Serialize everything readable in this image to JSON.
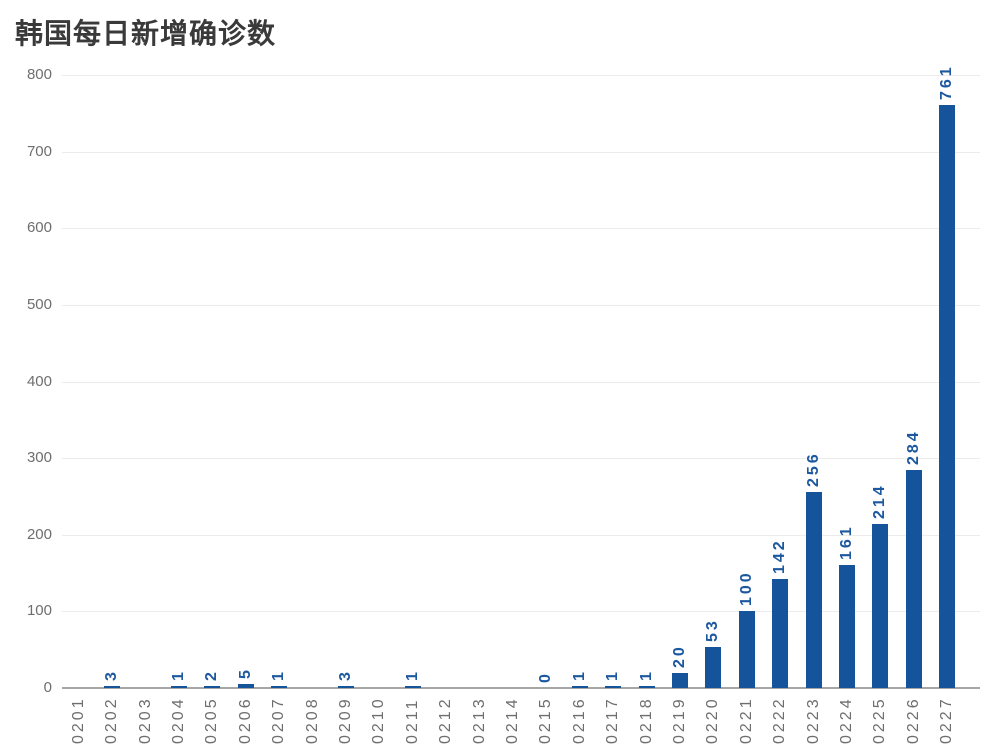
{
  "chart_data": {
    "type": "bar",
    "title": "韩国每日新增确诊数",
    "categories": [
      "0201",
      "0202",
      "0203",
      "0204",
      "0205",
      "0206",
      "0207",
      "0208",
      "0209",
      "0210",
      "0211",
      "0212",
      "0213",
      "0214",
      "0215",
      "0216",
      "0217",
      "0218",
      "0219",
      "0220",
      "0221",
      "0222",
      "0223",
      "0224",
      "0225",
      "0226",
      "0227"
    ],
    "values": [
      null,
      3,
      null,
      1,
      2,
      5,
      1,
      null,
      3,
      null,
      1,
      null,
      null,
      null,
      0,
      1,
      1,
      1,
      20,
      53,
      100,
      142,
      256,
      161,
      214,
      284,
      761
    ],
    "ylim": [
      0,
      800
    ],
    "yticks": [
      0,
      100,
      200,
      300,
      400,
      500,
      600,
      700,
      800
    ],
    "grid": "horizontal",
    "legend": "none",
    "value_labels": "rotated-90-ccw-above-bars",
    "xtick_labels": "rotated-90-ccw",
    "colors": {
      "bar": "#15549b",
      "value_label": "#1c589f",
      "tick_label": "#6e6e6e",
      "gridline": "#ececec",
      "axis_line": "#a6a6a6",
      "title": "#3a3a3a",
      "background": "#ffffff"
    }
  }
}
